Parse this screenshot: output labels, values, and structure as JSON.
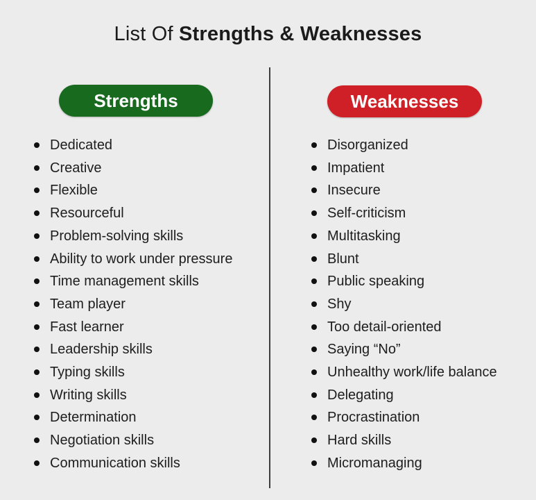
{
  "title": {
    "prefix": "List Of ",
    "strengths_word": "Strengths",
    "ampersand": " & ",
    "weaknesses_word": "Weaknesses"
  },
  "colors": {
    "background": "#ececec",
    "strengths_pill": "#186a1f",
    "weaknesses_pill": "#d02027",
    "divider": "#3e3e3e",
    "text": "#1d1d1d",
    "pill_text": "#ffffff"
  },
  "columns": {
    "strengths": {
      "header": "Strengths",
      "items": [
        "Dedicated",
        "Creative",
        "Flexible",
        "Resourceful",
        "Problem-solving skills",
        "Ability to work under pressure",
        "Time management skills",
        "Team player",
        "Fast learner",
        "Leadership skills",
        "Typing skills",
        "Writing skills",
        "Determination",
        "Negotiation skills",
        "Communication skills"
      ]
    },
    "weaknesses": {
      "header": "Weaknesses",
      "items": [
        "Disorganized",
        "Impatient",
        "Insecure",
        "Self-criticism",
        "Multitasking",
        "Blunt",
        "Public speaking",
        "Shy",
        "Too detail-oriented",
        "Saying “No”",
        "Unhealthy work/life balance",
        "Delegating",
        "Procrastination",
        "Hard skills",
        "Micromanaging"
      ]
    }
  }
}
